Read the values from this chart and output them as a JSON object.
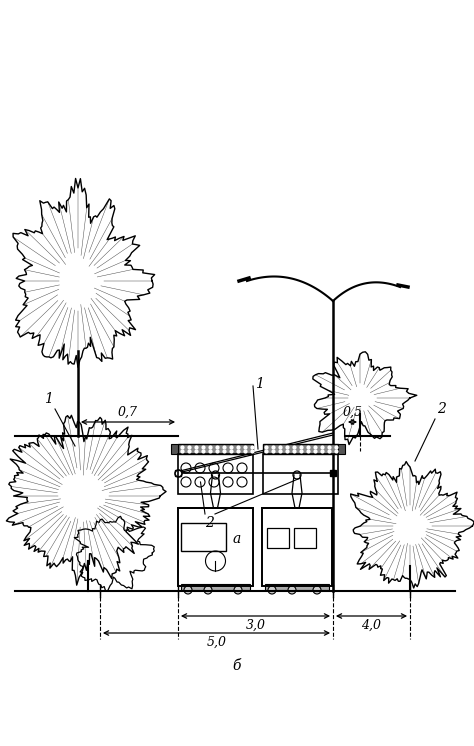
{
  "fig_width": 4.74,
  "fig_height": 7.46,
  "dpi": 100,
  "bg_color": "#ffffff",
  "line_color": "#000000",
  "label_a": "а",
  "label_b": "б",
  "label_1a": "1",
  "label_2a": "2",
  "label_1b": "1",
  "label_2b": "2",
  "dim_07": "0,7",
  "dim_05": "0,5",
  "dim_30": "3,0",
  "dim_40": "4,0",
  "dim_50": "5,0"
}
